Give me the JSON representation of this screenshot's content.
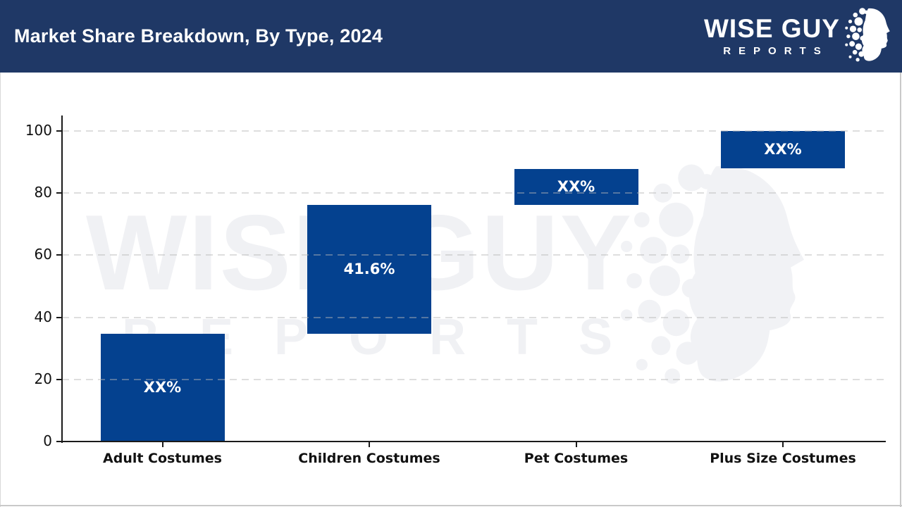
{
  "header": {
    "title": "Market Share Breakdown, By Type, 2024",
    "background_color": "#1f3866",
    "text_color": "#ffffff",
    "logo": {
      "name": "WISE GUY",
      "tagline": "REPORTS"
    }
  },
  "watermark": {
    "name": "WISE GUY",
    "tagline": "REPORTS"
  },
  "chart_data": {
    "type": "bar",
    "subtype": "floating-waterfall",
    "title": "Market Share Breakdown, By Type, 2024",
    "values_unit": "percent market share",
    "categories": [
      "Adult Costumes",
      "Children Costumes",
      "Pet Costumes",
      "Plus Size Costumes"
    ],
    "bars": [
      {
        "category": "Adult Costumes",
        "start": 0,
        "end": 34.7,
        "label": "XX%"
      },
      {
        "category": "Children Costumes",
        "start": 34.7,
        "end": 76.3,
        "label": "41.6%"
      },
      {
        "category": "Pet Costumes",
        "start": 76.3,
        "end": 87.8,
        "label": "XX%"
      },
      {
        "category": "Plus Size Costumes",
        "start": 88.0,
        "end": 100.0,
        "label": "XX%"
      }
    ],
    "xlabel": "",
    "ylabel": "",
    "ylim": [
      0,
      105
    ],
    "yticks": [
      0,
      20,
      40,
      60,
      80,
      100
    ],
    "grid": true,
    "grid_style": "dashed",
    "legend_position": "none",
    "bar_color": "#04418f",
    "label_color": "#ffffff",
    "axis_color": "#1a1a1a",
    "grid_color": "#bbbbbb"
  }
}
